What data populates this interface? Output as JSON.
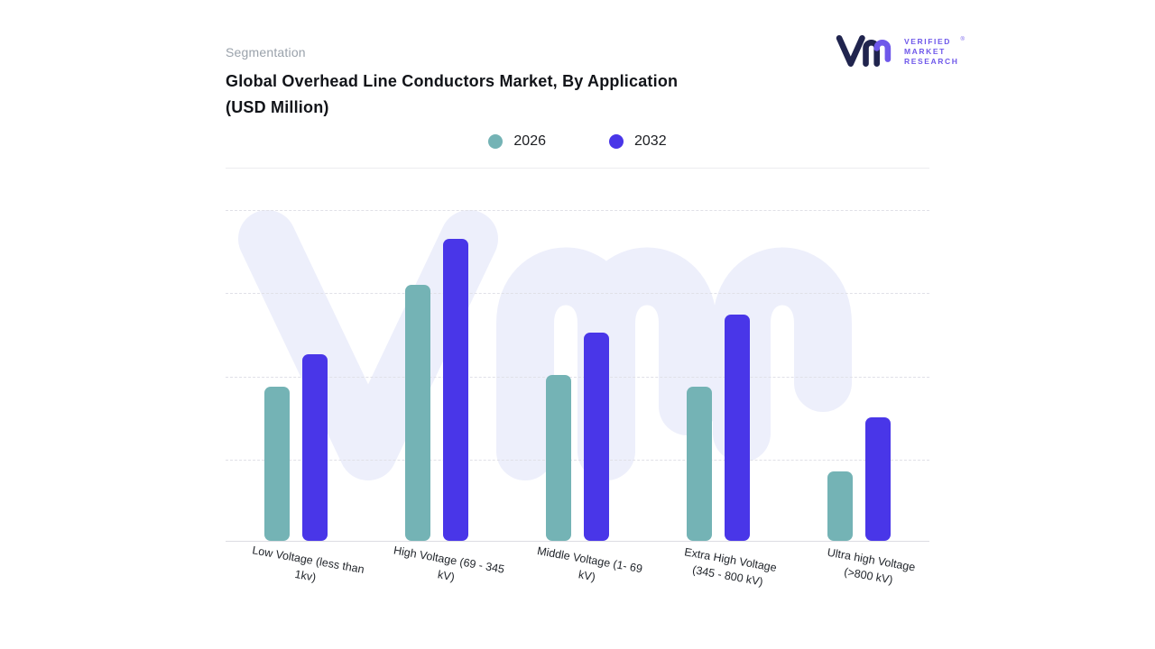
{
  "page": {
    "eyebrow": "Segmentation",
    "title_line1": "Global Overhead Line Conductors Market, By Application",
    "title_line2": "(USD Million)"
  },
  "logo": {
    "brand": "Verified Market Research",
    "lines": [
      "VERIFIED",
      "MARKET",
      "RESEARCH"
    ],
    "reg": "®",
    "mark_color": "#20244e",
    "mark_accent_color": "#6f58ea",
    "text_color": "#6f58ea"
  },
  "legend": [
    {
      "label": "2026",
      "color": "#74b3b5"
    },
    {
      "label": "2032",
      "color": "#4936e8"
    }
  ],
  "watermark": {
    "name": "vmr-monogram",
    "color": "#edeffb"
  },
  "chart_data": {
    "type": "bar",
    "title": "Global Overhead Line Conductors Market, By Application (USD Million)",
    "units": "USD Million",
    "categories": [
      "Low Voltage (less than 1kv)",
      "High Voltage (69 - 345 kV)",
      "Middle Voltage (1- 69 kV)",
      "Extra High Voltage (345 - 800 kV)",
      "Ultra high Voltage (>800 kV)"
    ],
    "series": [
      {
        "name": "2026",
        "color": "#74b3b5",
        "values": [
          51,
          85,
          55,
          51,
          23
        ]
      },
      {
        "name": "2032",
        "color": "#4936e8",
        "values": [
          62,
          100,
          69,
          75,
          41
        ]
      }
    ],
    "ylim": [
      0,
      110
    ],
    "yaxis_visible": false,
    "grid": "dashed-horizontal",
    "legend_position": "top-center"
  }
}
